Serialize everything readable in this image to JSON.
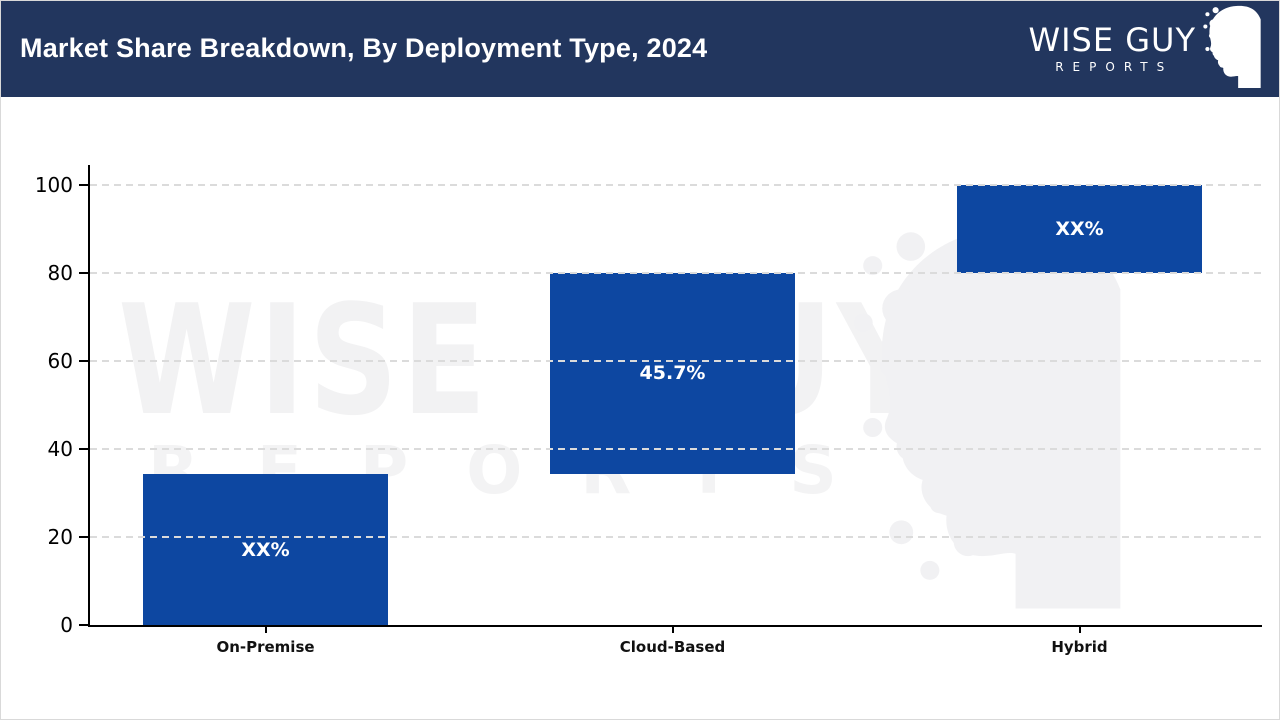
{
  "header": {
    "title": "Market Share Breakdown, By Deployment Type, 2024",
    "logo": {
      "name": "WISE GUY",
      "sub": "REPORTS"
    }
  },
  "watermark": {
    "line1": "WISE GUY",
    "line2": "REPORTS"
  },
  "chart_data": {
    "type": "bar",
    "subtype": "floating-segment bars (stacked market-share breakdown, waterfall style)",
    "title": "Market Share Breakdown, By Deployment Type, 2024",
    "categories": [
      "On-Premise",
      "Cloud-Based",
      "Hybrid"
    ],
    "segments": [
      {
        "category": "On-Premise",
        "start": 0,
        "end": 34.3,
        "label": "XX%"
      },
      {
        "category": "Cloud-Based",
        "start": 34.3,
        "end": 80,
        "label": "45.7%"
      },
      {
        "category": "Hybrid",
        "start": 80,
        "end": 100,
        "label": "XX%"
      }
    ],
    "yticks": [
      0,
      20,
      40,
      60,
      80,
      100
    ],
    "ylim": [
      0,
      104.5
    ],
    "xlabel": "",
    "ylabel": "",
    "grid": "horizontal-dashed",
    "legend": "none",
    "bar_color": "#0d47a1",
    "bar_label_color": "#ffffff",
    "header_color": "#22365e"
  }
}
